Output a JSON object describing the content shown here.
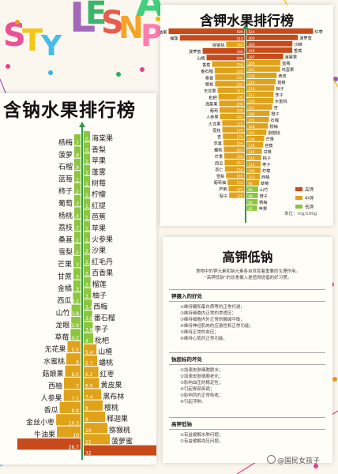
{
  "decor": {
    "letters": [
      "S",
      "T",
      "Y",
      "L",
      "E",
      "S",
      "N",
      "A",
      "P"
    ],
    "colors": [
      "#e83e8c",
      "#f2c200",
      "#34b6e4",
      "#9b59b6",
      "#27ae60",
      "#e74c3c",
      "#f39c12",
      "#2ecc71",
      "#ff6fa8"
    ]
  },
  "sodium": {
    "title": "含钠水果排行榜"
  },
  "potassium": {
    "title": "含钾水果排行榜",
    "legend": [
      "高钾",
      "中钾",
      "低钾"
    ],
    "unit": "单位：mg/100g"
  },
  "article": {
    "title": "高钾低钠",
    "intro": [
      "食物中的钾元素和钠元素各自发挥着重要的生理作用。",
      "“高钾低钠”的饮食摄入是值得提倡的好习惯。"
    ],
    "sections": [
      {
        "head": "钾摄入的好处",
        "lines": [
          "①维持糖和蛋白质等的正常代谢；",
          "②维持细胞内正常的渗透压；",
          "③维持细胞内外正常的酸碱平衡；",
          "④维持神经肌肉的应激性和正常功能；",
          "⑤维持正常的血压；",
          "⑥维持心肌的正常功能。"
        ]
      },
      {
        "head": "钠超标的坏处",
        "lines": [
          "①加速皮肤细胞脱水；",
          "②加速皮肤细胞老化；",
          "③影响血压的稳定性；",
          "④引起胃部疾病；",
          "⑤影响钙的正常吸收；",
          "⑥引起浮肿。"
        ]
      },
      {
        "head": "高钾低钠",
        "lines": [
          "①有益缓解水肿问题；",
          "②有益缓解血压问题。"
        ]
      }
    ]
  },
  "watermark": "@国民女孩子",
  "chart_data": [
    {
      "type": "bar",
      "title": "含钠水果排行榜",
      "layout": "butterfly-pyramid",
      "left_labels": [
        "杨梅",
        "菠萝",
        "石榴",
        "蓝莓",
        "柿子",
        "葡萄",
        "杨桃",
        "荔枝",
        "桑葚",
        "雪梨",
        "芒果",
        "甘蔗",
        "金橘",
        "西瓜",
        "山竹",
        "龙眼",
        "草莓",
        "无花果",
        "水蜜桃",
        "菇娘果",
        "西柚",
        "人参果",
        "香瓜",
        "金丝小枣",
        "牛油果",
        ""
      ],
      "left_values": [
        0.7,
        0.8,
        0.9,
        1,
        1.2,
        1.3,
        1.4,
        1.7,
        2,
        2.5,
        3,
        3,
        3,
        3.2,
        3.8,
        3.9,
        4.2,
        5.5,
        6,
        6.5,
        7,
        7.1,
        8.8,
        10.3,
        10,
        26.7
      ],
      "right_labels": [
        "海棠果",
        "香梨",
        "苹果",
        "蓬雾",
        "树莓",
        "柠檬",
        "红提",
        "芭蕉",
        "苹果",
        "火参果",
        "沙果",
        "红毛丹",
        "百香果",
        "榴莲",
        "柚子",
        "西梅",
        "番石榴",
        "李子",
        "枇杷",
        "山楂",
        "蟠桃",
        "红枣",
        "黄皮果",
        "黑布林",
        "樱桃",
        "释迦果",
        "猕猴桃",
        "菠萝蜜",
        ""
      ],
      "right_values": [
        0.5,
        0.6,
        1,
        1,
        1,
        1.1,
        1.2,
        1.3,
        1.6,
        1.8,
        2,
        2.5,
        2.7,
        2.9,
        3,
        3.4,
        3.6,
        3.8,
        4,
        5.4,
        5.7,
        6.2,
        6.5,
        7.4,
        8,
        9,
        10,
        11,
        32
      ],
      "colors": {
        "high": "#c84a1a",
        "mid": "#dfa21a",
        "low": "#8cc63e"
      }
    },
    {
      "type": "bar",
      "title": "含钾水果排行榜",
      "layout": "butterfly-pyramid",
      "left_labels": [
        "牛油果",
        "榴莲",
        "猕猴桃",
        "菠萝蜜",
        "山楂",
        "香蕉",
        "番石榴",
        "桑葚",
        "樱桃",
        "无花果",
        "枇杷",
        "海棠果",
        "葡萄",
        "人参果",
        "火龙果",
        "荔枝",
        "杏",
        "苹果",
        "蟠桃",
        "芒果",
        "西瓜",
        "杏仁",
        "雪梨",
        "葡萄柚",
        "芦笋",
        "梨子"
      ],
      "left_values": [
        599,
        510,
        144,
        330,
        299,
        256,
        235,
        232,
        232,
        212,
        205,
        200,
        196,
        193,
        175,
        174,
        170,
        166,
        163,
        159,
        157,
        154,
        145,
        133,
        125,
        120
      ],
      "right_labels": [
        "红枣",
        "菠萝蜜",
        "沙棘",
        "香蕉",
        "海棠果",
        "蓝莓",
        "鸡蛋果",
        "黄皮",
        "菇娘",
        "柚子",
        "李子",
        "水蜜桃",
        "杏",
        "橙子",
        "石榴",
        "杨梅",
        "猕猴桃",
        "芒果",
        "芭蕉",
        "甘蔗",
        "桃子",
        "枣子",
        "柠檬",
        "西柚",
        "草莓",
        "山竹",
        "橙子",
        "杨梅",
        "苹果"
      ],
      "right_values": [
        524,
        404,
        360,
        359,
        287,
        266,
        263,
        236,
        229,
        218,
        211,
        209,
        201,
        180,
        175,
        168,
        155,
        138,
        130,
        119,
        114,
        110,
        109,
        103,
        96,
        90,
        88,
        85,
        82
      ],
      "legend": [
        "高钾",
        "中钾",
        "低钾"
      ],
      "unit": "单位：mg/100g",
      "colors": {
        "high": "#c84a1a",
        "mid": "#dfa21a",
        "low": "#8cc63e"
      }
    }
  ]
}
